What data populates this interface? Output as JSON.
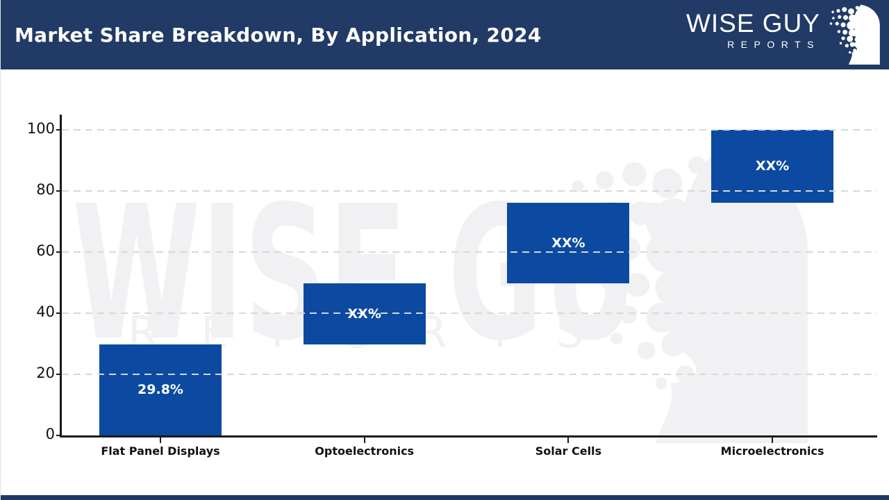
{
  "header": {
    "title": "Market Share Breakdown, By Application, 2024",
    "logo_line1": "WISE GUY",
    "logo_line2": "REPORTS"
  },
  "watermark": {
    "line1": "WISE GUY",
    "line2": "REPORTS"
  },
  "chart_data": {
    "type": "bar",
    "subtype": "floating-waterfall",
    "title": "Market Share Breakdown, By Application, 2024",
    "categories": [
      "Flat Panel Displays",
      "Optoelectronics",
      "Solar Cells",
      "Microelectronics"
    ],
    "segments": [
      {
        "category": "Flat Panel Displays",
        "start": 0,
        "end": 29.8,
        "label": "29.8%"
      },
      {
        "category": "Optoelectronics",
        "start": 29.8,
        "end": 49.8,
        "label": "XX%"
      },
      {
        "category": "Solar Cells",
        "start": 49.8,
        "end": 76.2,
        "label": "XX%"
      },
      {
        "category": "Microelectronics",
        "start": 76.2,
        "end": 100,
        "label": "XX%"
      }
    ],
    "yticks": [
      0,
      20,
      40,
      60,
      80,
      100
    ],
    "ylim": [
      0,
      105
    ],
    "xlabel": "",
    "ylabel": "",
    "grid": "horizontal-dashed",
    "legend": "none"
  },
  "colors": {
    "header_bg": "#213a66",
    "bar_blue": "#0b4aa0",
    "footer_bg": "#213a66",
    "watermark": "#f1f1f4"
  }
}
